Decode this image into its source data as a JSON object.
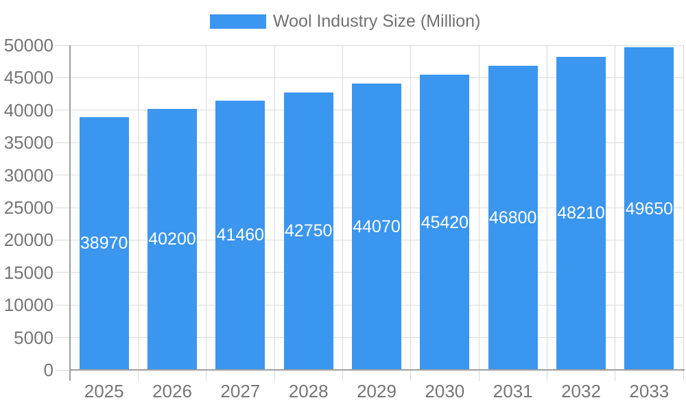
{
  "chart_data": {
    "type": "bar",
    "title": "Wool Industry Size (Million)",
    "categories": [
      "2025",
      "2026",
      "2027",
      "2028",
      "2029",
      "2030",
      "2031",
      "2032",
      "2033"
    ],
    "series": [
      {
        "name": "Wool Industry Size (Million)",
        "values": [
          38970,
          40200,
          41460,
          42750,
          44070,
          45420,
          46800,
          48210,
          49650
        ]
      }
    ],
    "value_labels": [
      "38970",
      "40200",
      "41460",
      "42750",
      "44070",
      "45420",
      "46800",
      "48210",
      "49650"
    ],
    "xlabel": "",
    "ylabel": "",
    "ylim": [
      0,
      50000
    ],
    "ytick_step": 5000,
    "ytick_labels": [
      "0",
      "5000",
      "10000",
      "15000",
      "20000",
      "25000",
      "30000",
      "35000",
      "40000",
      "45000",
      "50000"
    ],
    "grid": true,
    "legend_position": "top-center",
    "value_label_position": "inside-center",
    "colors": {
      "bar": "#3B96EF",
      "value_text": "#ffffff",
      "axis_text": "#757575",
      "legend_text": "#717171",
      "gridline": "#d9d9d9",
      "axis_line": "#9e9e9e",
      "background": "#ffffff"
    }
  }
}
